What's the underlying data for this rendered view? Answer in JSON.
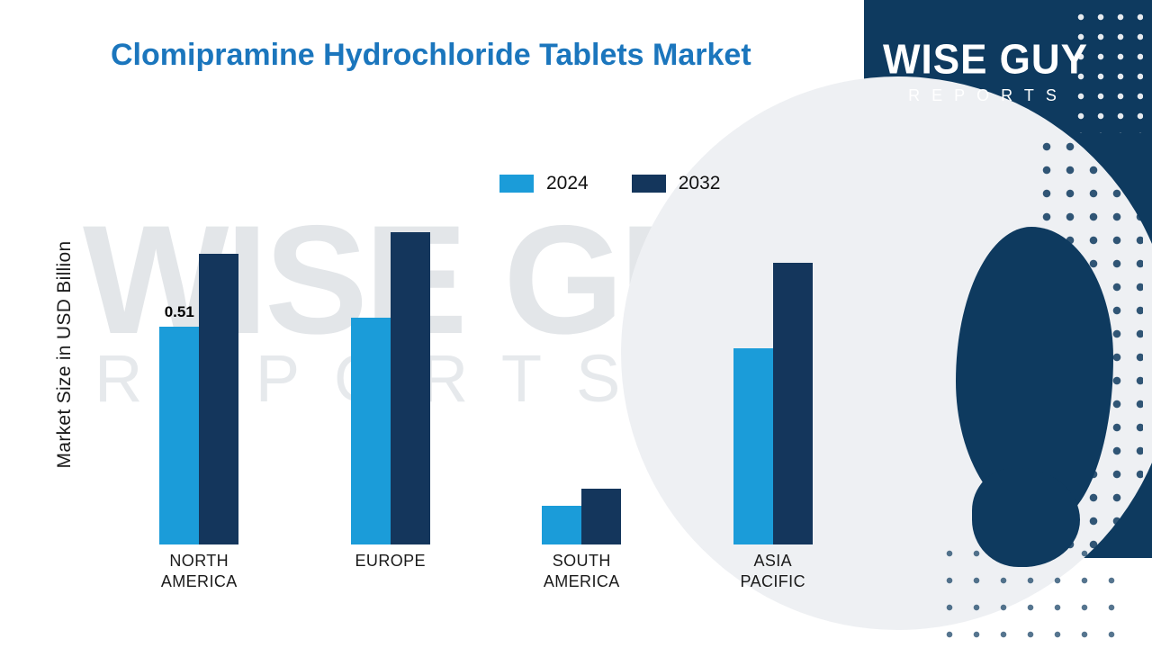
{
  "title": "Clomipramine Hydrochloride Tablets Market",
  "logo": {
    "line1": "WISE GUY",
    "line2": "REPORTS"
  },
  "watermark": {
    "line1": "WISE GUY",
    "line2": "REPORTS"
  },
  "colors": {
    "title_blue": "#1b76bd",
    "series_2024": "#1b9cd9",
    "series_2032": "#14365c",
    "brand_navy": "#0e3a5f",
    "watermark_gray": "#e3e6e9"
  },
  "chart_data": {
    "type": "bar",
    "title": "Clomipramine Hydrochloride Tablets Market",
    "ylabel": "Market Size in USD Billion",
    "xlabel": "",
    "ylim": [
      0,
      0.8
    ],
    "grid": false,
    "legend_position": "top",
    "categories": [
      "NORTH\nAMERICA",
      "EUROPE",
      "SOUTH\nAMERICA",
      "ASIA\nPACIFIC"
    ],
    "series": [
      {
        "name": "2024",
        "color": "#1b9cd9",
        "values": [
          0.51,
          0.53,
          0.09,
          0.46
        ]
      },
      {
        "name": "2032",
        "color": "#14365c",
        "values": [
          0.68,
          0.73,
          0.13,
          0.66
        ]
      }
    ],
    "annotations": [
      {
        "series": "2024",
        "category_index": 0,
        "text": "0.51"
      }
    ]
  }
}
